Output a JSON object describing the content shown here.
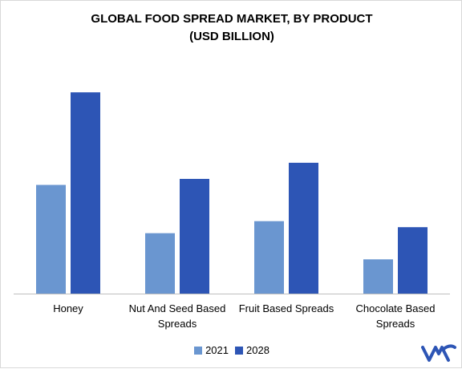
{
  "chart_data": {
    "type": "bar",
    "title": [
      "GLOBAL FOOD SPREAD MARKET, BY PRODUCT",
      "(USD BILLION)"
    ],
    "categories": [
      "Honey",
      "Nut And Seed Based Spreads",
      "Fruit Based Spreads",
      "Chocolate Based Spreads"
    ],
    "category_label_lines": [
      [
        "Honey"
      ],
      [
        "Nut And Seed Based",
        "Spreads"
      ],
      [
        "Fruit Based Spreads"
      ],
      [
        "Chocolate Based",
        "Spreads"
      ]
    ],
    "series": [
      {
        "name": "2021",
        "values": [
          5.4,
          3.0,
          3.6,
          1.7
        ],
        "color": "#6a96d0"
      },
      {
        "name": "2028",
        "values": [
          10.0,
          5.7,
          6.5,
          3.3
        ],
        "color": "#2d55b5"
      }
    ],
    "xlabel": "",
    "ylabel": "",
    "ylim": [
      0,
      11
    ],
    "grid": false,
    "legend_position": "bottom-center"
  },
  "logo": {
    "name": "mrfr-logo-icon",
    "color": "#2d55b5"
  }
}
